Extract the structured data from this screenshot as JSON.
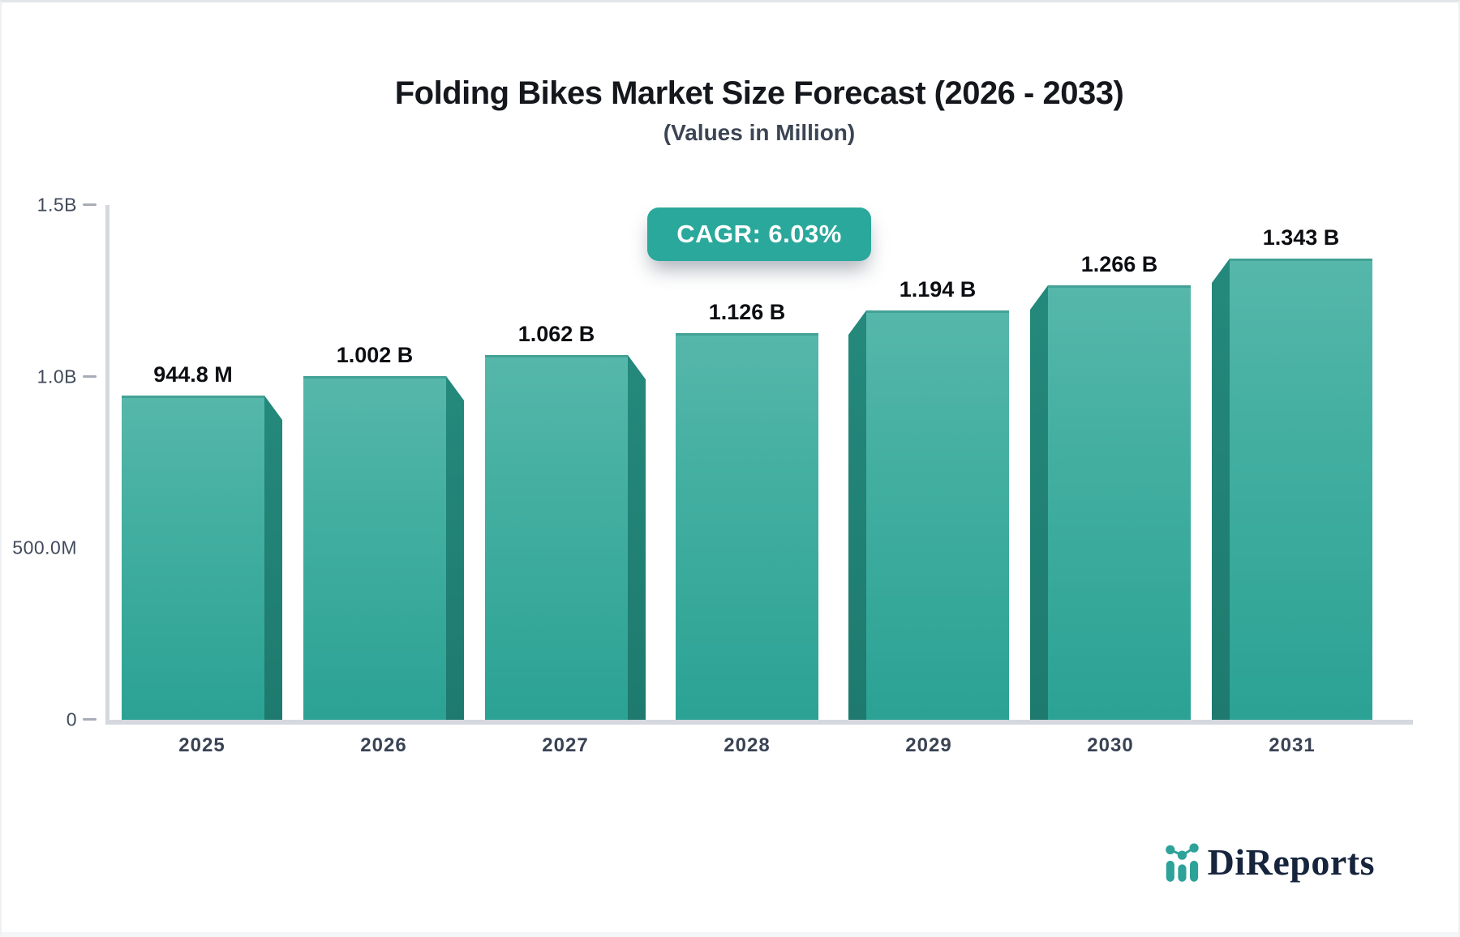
{
  "chart_data": {
    "type": "bar",
    "title": "Folding Bikes Market Size Forecast (2026 - 2033)",
    "subtitle": "(Values in Million)",
    "cagr_label": "CAGR: 6.03%",
    "categories": [
      "2025",
      "2026",
      "2027",
      "2028",
      "2029",
      "2030",
      "2031"
    ],
    "values_million": [
      944.8,
      1002,
      1062,
      1126,
      1194,
      1266,
      1343
    ],
    "value_labels": [
      "944.8 M",
      "1.002 B",
      "1.062 B",
      "1.126 B",
      "1.194 B",
      "1.266 B",
      "1.343 B"
    ],
    "xlabel": "",
    "ylabel": "",
    "ylim_million": [
      0,
      1500
    ],
    "yticks": [
      {
        "label": "0",
        "value_million": 0,
        "dash": true
      },
      {
        "label": "500.0M",
        "value_million": 500,
        "dash": false
      },
      {
        "label": "1.0B",
        "value_million": 1000,
        "dash": true
      },
      {
        "label": "1.5B",
        "value_million": 1500,
        "dash": true
      }
    ],
    "grid": false,
    "legend": "none",
    "bar_style": "3d-perspective-toward-center"
  },
  "colors": {
    "accent_teal": "#2aa89b",
    "bar_face_top": "#56b7aa",
    "bar_face_bottom": "#2ba294",
    "bar_side_dark": "#1f7d71",
    "axis_line": "#d5d8de",
    "title_text": "#14171c",
    "subtitle_text": "#3c4554",
    "axis_text": "#414b5c",
    "year_text": "#3a4354",
    "value_text": "#0c0e12",
    "logo_navy": "#16243c"
  },
  "logo": {
    "text": "DiReports",
    "icon": "bar-chart-trend-icon"
  }
}
